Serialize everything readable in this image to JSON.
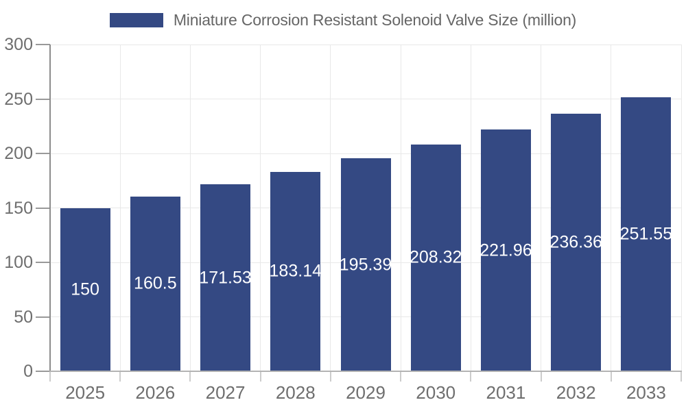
{
  "chart_data": {
    "type": "bar",
    "title": "Miniature Corrosion Resistant Solenoid Valve Size (million)",
    "categories": [
      "2025",
      "2026",
      "2027",
      "2028",
      "2029",
      "2030",
      "2031",
      "2032",
      "2033"
    ],
    "values": [
      150,
      160.5,
      171.53,
      183.14,
      195.39,
      208.32,
      221.96,
      236.36,
      251.55
    ],
    "value_labels": [
      "150",
      "160.5",
      "171.53",
      "183.14",
      "195.39",
      "208.32",
      "221.96",
      "236.36",
      "251.55"
    ],
    "xlabel": "",
    "ylabel": "",
    "ylim": [
      0,
      300
    ],
    "yticks": [
      0,
      50,
      100,
      150,
      200,
      250,
      300
    ],
    "grid": true,
    "legend_position": "top",
    "value_label_position": "inside-center"
  },
  "colors": {
    "bar": "#344983",
    "grid": "#e8e8e8",
    "axis_y": "#8c8c8c",
    "axis_x": "#b3b3b3",
    "tick_y": "#999999",
    "tick_x": "#cccccc",
    "axis_text": "#6e6e6e",
    "legend_text": "#666666",
    "value_text": "#ffffff"
  }
}
